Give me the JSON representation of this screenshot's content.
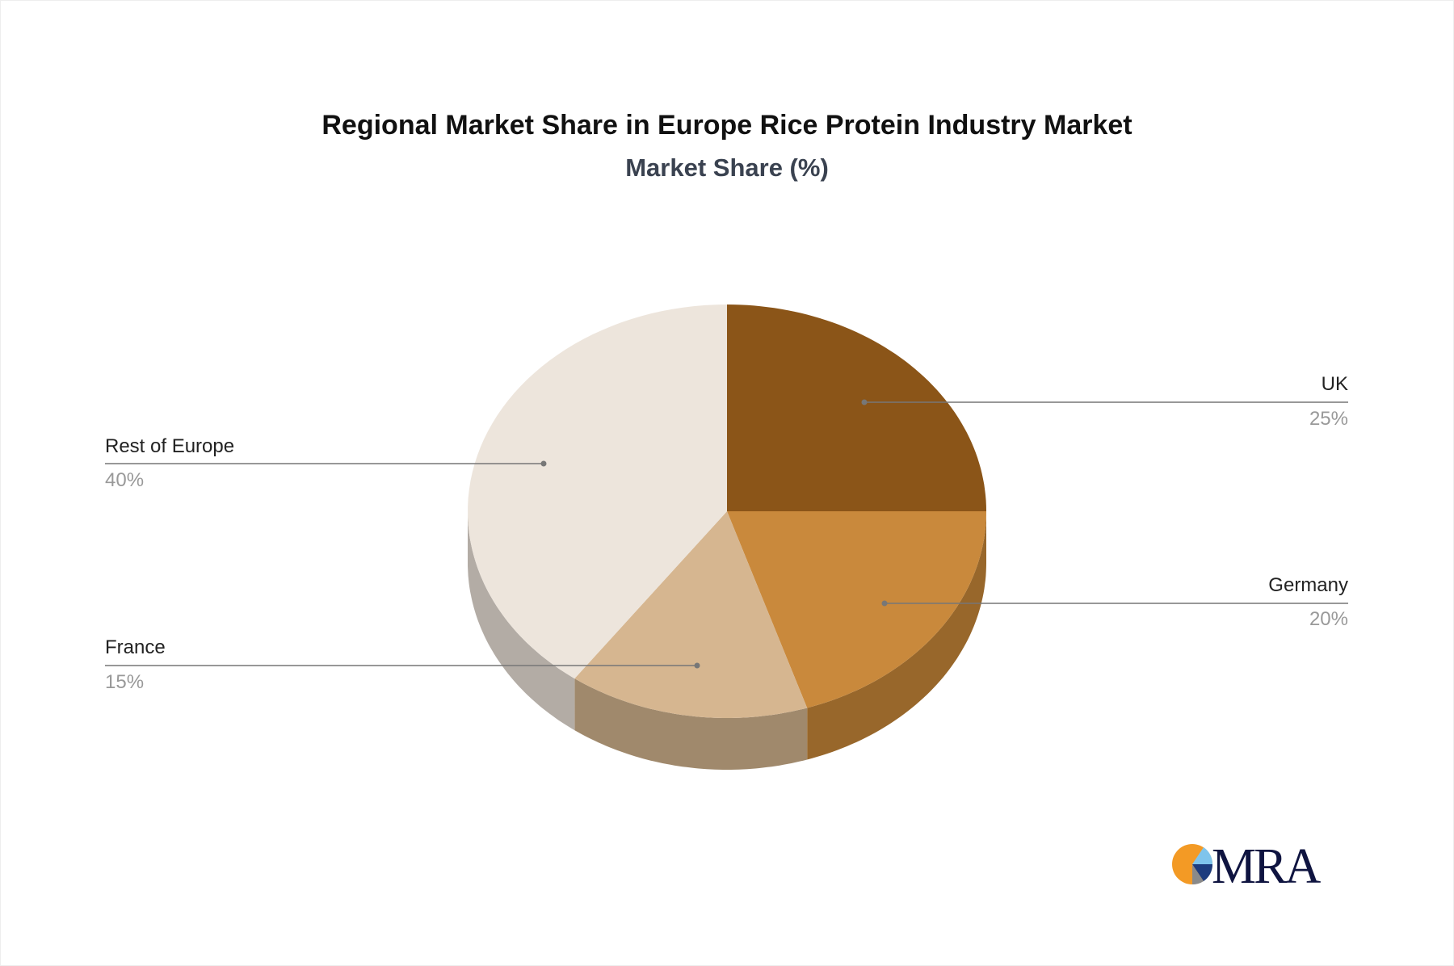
{
  "chart_data": {
    "type": "pie",
    "title": "Regional Market Share in Europe Rice Protein Industry Market",
    "subtitle": "Market Share (%)",
    "three_d": true,
    "slices": [
      {
        "label": "UK",
        "value": 25,
        "pct_label": "25%",
        "color": "#8B5518",
        "side_color": "#7a4a15"
      },
      {
        "label": "Germany",
        "value": 20,
        "pct_label": "20%",
        "color": "#C9893C",
        "side_color": "#98672B"
      },
      {
        "label": "France",
        "value": 15,
        "pct_label": "15%",
        "color": "#D6B690",
        "side_color": "#A0896C"
      },
      {
        "label": "Rest of Europe",
        "value": 40,
        "pct_label": "40%",
        "color": "#EDE5DC",
        "side_color": "#B3ACA5"
      }
    ]
  },
  "logo": {
    "text": "MRA",
    "colors": [
      "#F39A25",
      "#7FC4EC",
      "#1D3C7E",
      "#8A8A8A",
      "#0F1440"
    ]
  }
}
